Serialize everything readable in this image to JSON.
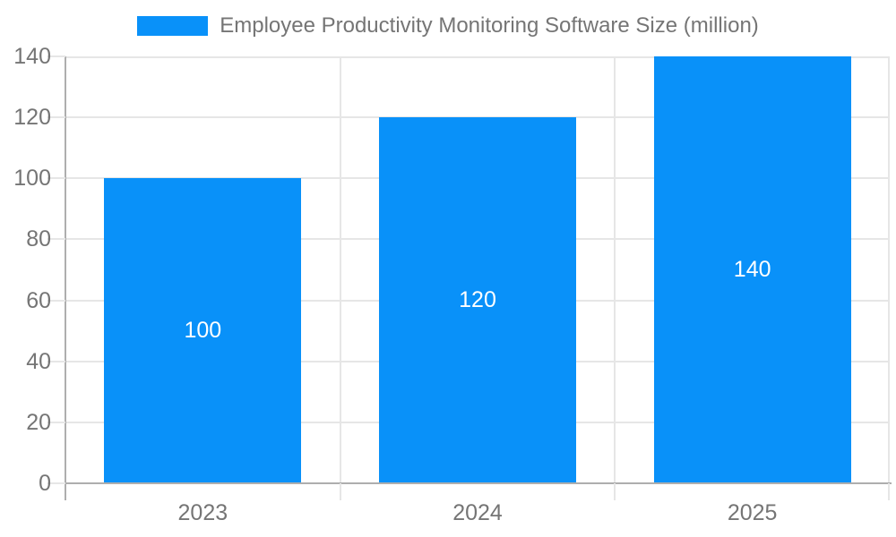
{
  "legend": {
    "label": "Employee Productivity Monitoring Software Size (million)"
  },
  "chart_data": {
    "type": "bar",
    "title": "Employee Productivity Monitoring Software Size (million)",
    "categories": [
      "2023",
      "2024",
      "2025"
    ],
    "values": [
      100,
      120,
      140
    ],
    "series": [
      {
        "name": "Employee Productivity Monitoring Software Size (million)",
        "values": [
          100,
          120,
          140
        ]
      }
    ],
    "data_labels": [
      "100",
      "120",
      "140"
    ],
    "xlabel": "",
    "ylabel": "",
    "ylim": [
      0,
      140
    ],
    "yticks": [
      0,
      20,
      40,
      60,
      80,
      100,
      120,
      140
    ],
    "ytick_labels": [
      "0",
      "20",
      "40",
      "60",
      "80",
      "100",
      "120",
      "140"
    ],
    "grid": true,
    "legend_position": "top",
    "colors": {
      "bar": "#0991f9",
      "data_label": "#ffffff",
      "axis_text": "#757575",
      "gridline": "#e6e6e6",
      "axis_line": "#aeaeae"
    }
  }
}
